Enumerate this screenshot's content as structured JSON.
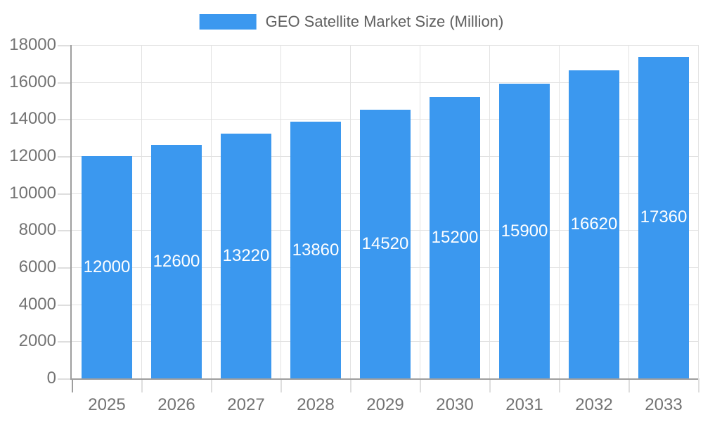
{
  "chart_data": {
    "type": "bar",
    "legend": "GEO Satellite Market Size (Million)",
    "legend_position": "top",
    "categories": [
      "2025",
      "2026",
      "2027",
      "2028",
      "2029",
      "2030",
      "2031",
      "2032",
      "2033"
    ],
    "values": [
      12000,
      12600,
      13220,
      13860,
      14520,
      15200,
      15900,
      16620,
      17360
    ],
    "value_labels": [
      "12000",
      "12600",
      "13220",
      "13860",
      "14520",
      "15200",
      "15900",
      "16620",
      "17360"
    ],
    "ylim": [
      0,
      18000
    ],
    "y_ticks": [
      0,
      2000,
      4000,
      6000,
      8000,
      10000,
      12000,
      14000,
      16000,
      18000
    ],
    "grid": true,
    "colors": {
      "bar": "#3b98ef",
      "value_label": "#ffffff",
      "axis_line": "#9e9e9e",
      "gridline": "#e2e2e2",
      "tick_mark": "#dedede",
      "tick_text": "#737373",
      "legend_text": "#5f5f5f"
    }
  }
}
